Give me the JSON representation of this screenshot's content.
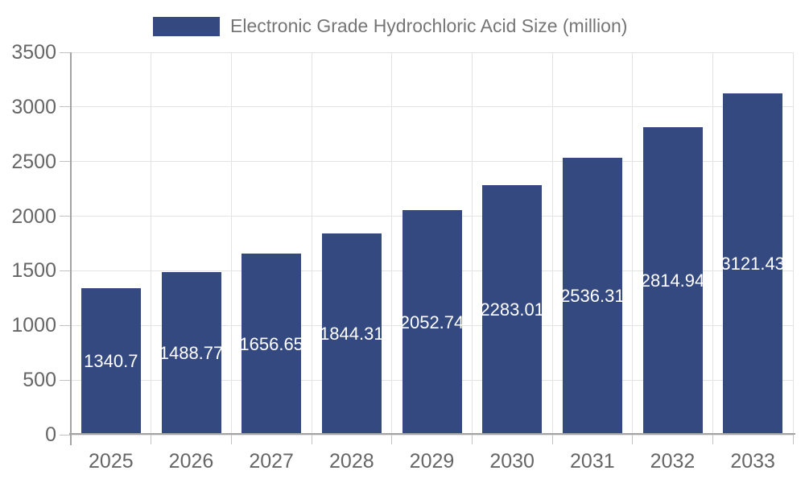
{
  "legend": {
    "swatch_color": "#354981",
    "label": "Electronic Grade Hydrochloric Acid Size (million)"
  },
  "chart_data": {
    "type": "bar",
    "title": "Electronic Grade Hydrochloric Acid Size (million)",
    "categories": [
      "2025",
      "2026",
      "2027",
      "2028",
      "2029",
      "2030",
      "2031",
      "2032",
      "2033"
    ],
    "values": [
      1340.7,
      1488.77,
      1656.65,
      1844.31,
      2052.74,
      2283.01,
      2536.31,
      2814.94,
      3121.43
    ],
    "bar_labels": [
      "1340.7",
      "1488.77",
      "1656.65",
      "1844.31",
      "2052.74",
      "2283.01",
      "2536.31",
      "2814.94",
      "3121.43"
    ],
    "xlabel": "",
    "ylabel": "",
    "ylim": [
      0,
      3500
    ],
    "yticks": [
      0,
      500,
      1000,
      1500,
      2000,
      2500,
      3000,
      3500
    ],
    "grid": true,
    "legend_position": "top",
    "colors": {
      "bar": "#354981",
      "title_text": "#757575",
      "axis_label_text": "#666666",
      "axis_line": "#a3a3a3",
      "tick_mark": "#c2c2c2",
      "gridline": "#e3e3e3",
      "bar_label_text": "#ffffff"
    }
  }
}
